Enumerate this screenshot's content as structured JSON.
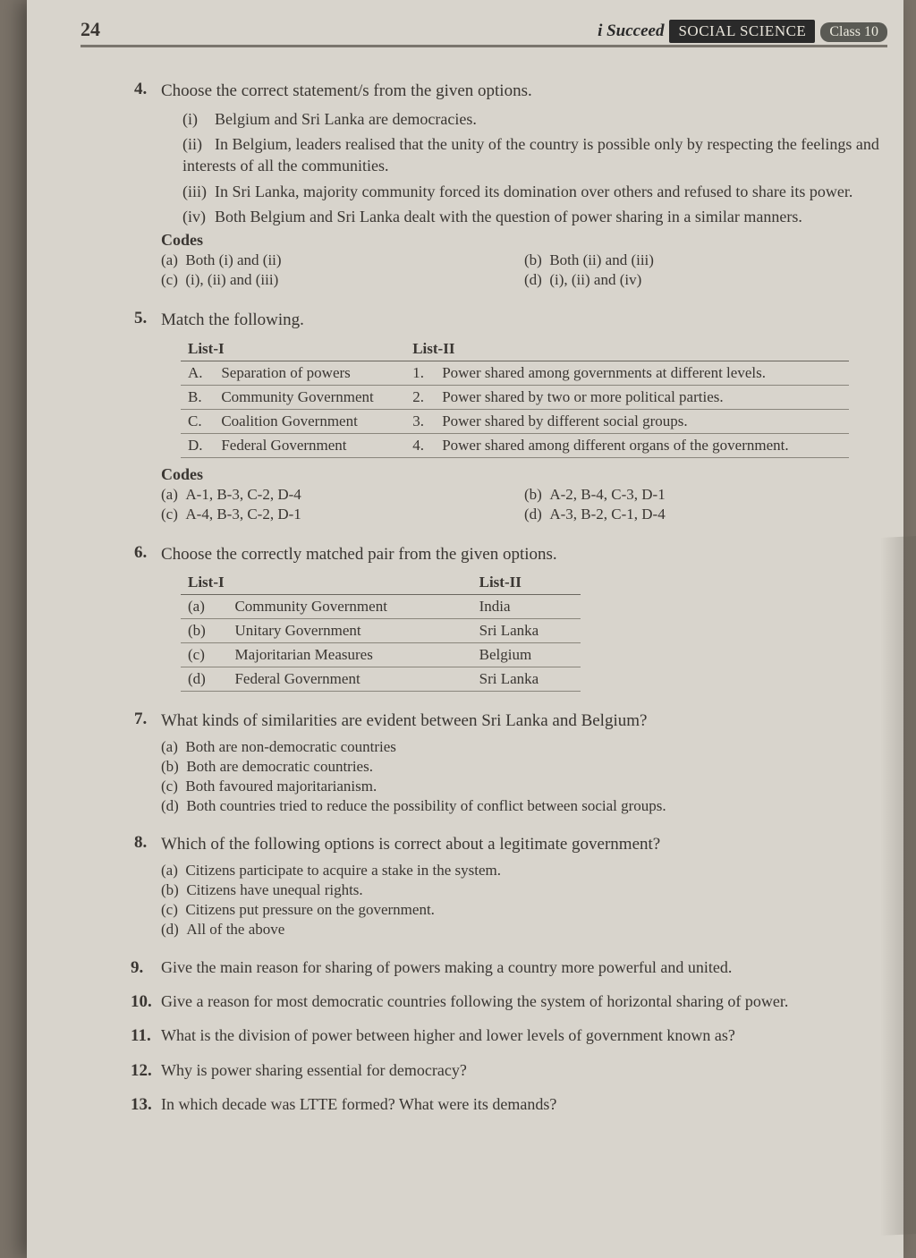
{
  "header": {
    "page_number": "24",
    "brand_prefix": "i Succeed",
    "subject": "SOCIAL SCIENCE",
    "class_label": "Class 10"
  },
  "q4": {
    "num": "4.",
    "stem": "Choose the correct statement/s from the given options.",
    "items": [
      {
        "rn": "(i)",
        "text": "Belgium and Sri Lanka are democracies."
      },
      {
        "rn": "(ii)",
        "text": "In Belgium, leaders realised that the unity of the country is possible only by respecting the feelings and interests of all the communities."
      },
      {
        "rn": "(iii)",
        "text": "In Sri Lanka, majority community forced its domination over others and refused to share its power."
      },
      {
        "rn": "(iv)",
        "text": "Both Belgium and Sri Lanka dealt with the question of power sharing in a similar manners."
      }
    ],
    "codes_label": "Codes",
    "codes": [
      {
        "k": "(a)",
        "v": "Both (i) and (ii)"
      },
      {
        "k": "(b)",
        "v": "Both (ii) and (iii)"
      },
      {
        "k": "(c)",
        "v": "(i), (ii) and (iii)"
      },
      {
        "k": "(d)",
        "v": "(i), (ii) and (iv)"
      }
    ]
  },
  "q5": {
    "num": "5.",
    "stem": "Match the following.",
    "head_l": "List-I",
    "head_r": "List-II",
    "rows": [
      {
        "a": "A.",
        "al": "Separation of powers",
        "b": "1.",
        "bl": "Power shared among governments at different levels."
      },
      {
        "a": "B.",
        "al": "Community Government",
        "b": "2.",
        "bl": "Power shared by two or more political parties."
      },
      {
        "a": "C.",
        "al": "Coalition Government",
        "b": "3.",
        "bl": "Power shared by different social groups."
      },
      {
        "a": "D.",
        "al": "Federal Government",
        "b": "4.",
        "bl": "Power shared among different organs of the government."
      }
    ],
    "codes_label": "Codes",
    "codes": [
      {
        "k": "(a)",
        "v": "A-1, B-3, C-2, D-4"
      },
      {
        "k": "(b)",
        "v": "A-2, B-4, C-3, D-1"
      },
      {
        "k": "(c)",
        "v": "A-4, B-3, C-2, D-1"
      },
      {
        "k": "(d)",
        "v": "A-3, B-2, C-1, D-4"
      }
    ]
  },
  "q6": {
    "num": "6.",
    "stem": "Choose the correctly matched pair from the given options.",
    "head_l": "List-I",
    "head_r": "List-II",
    "rows": [
      {
        "k": "(a)",
        "l": "Community Government",
        "r": "India"
      },
      {
        "k": "(b)",
        "l": "Unitary Government",
        "r": "Sri Lanka"
      },
      {
        "k": "(c)",
        "l": "Majoritarian Measures",
        "r": "Belgium"
      },
      {
        "k": "(d)",
        "l": "Federal Government",
        "r": "Sri Lanka"
      }
    ]
  },
  "q7": {
    "num": "7.",
    "stem": "What kinds of similarities are evident between Sri Lanka and Belgium?",
    "opts": [
      {
        "k": "(a)",
        "v": "Both are non-democratic countries"
      },
      {
        "k": "(b)",
        "v": "Both are democratic countries."
      },
      {
        "k": "(c)",
        "v": "Both favoured majoritarianism."
      },
      {
        "k": "(d)",
        "v": "Both countries tried to reduce the possibility of conflict between social groups."
      }
    ]
  },
  "q8": {
    "num": "8.",
    "stem": "Which of the following options is correct about a legitimate government?",
    "opts": [
      {
        "k": "(a)",
        "v": "Citizens participate to acquire a stake in the system."
      },
      {
        "k": "(b)",
        "v": "Citizens have unequal rights."
      },
      {
        "k": "(c)",
        "v": "Citizens put pressure on the government."
      },
      {
        "k": "(d)",
        "v": "All of the above"
      }
    ]
  },
  "q9": {
    "num": "9.",
    "text": "Give the main reason for sharing of powers making a country more powerful and united."
  },
  "q10": {
    "num": "10.",
    "text": "Give a reason for most democratic countries following the system of horizontal sharing of power."
  },
  "q11": {
    "num": "11.",
    "text": "What is the division of power between higher and lower levels of government known as?"
  },
  "q12": {
    "num": "12.",
    "text": "Why is power sharing essential for democracy?"
  },
  "q13": {
    "num": "13.",
    "text": "In which decade was LTTE formed? What were its demands?"
  }
}
